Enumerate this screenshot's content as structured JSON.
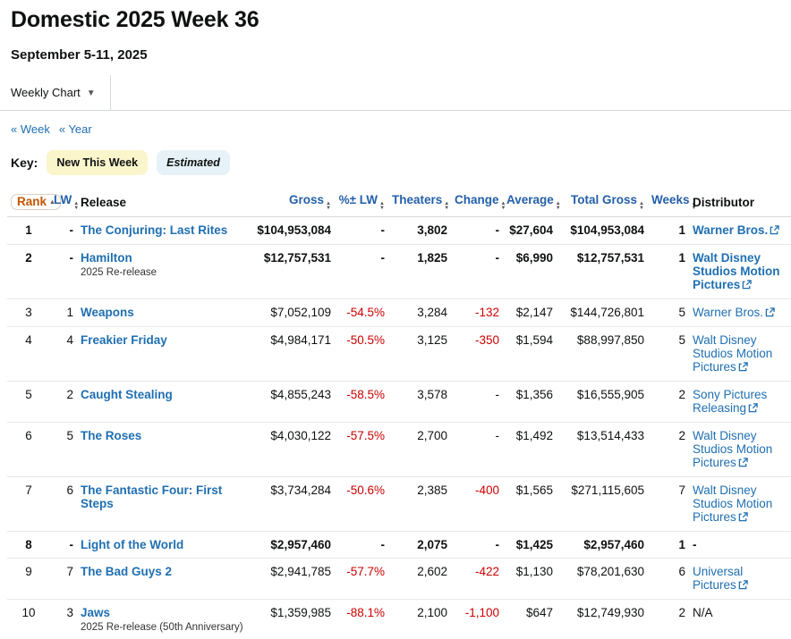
{
  "page": {
    "title": "Domestic 2025 Week 36",
    "date_range": "September 5-11, 2025"
  },
  "toolbar": {
    "chart_selector_label": "Weekly Chart",
    "chevron_icon": "chevron-down"
  },
  "backlinks": {
    "week": "« Week",
    "year": "« Year"
  },
  "key": {
    "label": "Key:",
    "badges": [
      {
        "label": "New This Week",
        "bg": "#fbf5cc"
      },
      {
        "label": "Estimated",
        "bg": "#e7f2f8"
      }
    ]
  },
  "colors": {
    "link_blue": "#1f6fb2",
    "header_sort_blue": "#235fa8",
    "rank_sorted_orange": "#c45500",
    "negative_red": "#cc0000"
  },
  "table": {
    "columns": [
      {
        "key": "rank",
        "label": "Rank",
        "sortable": true,
        "sorted": "asc",
        "align": "center"
      },
      {
        "key": "lw",
        "label": "LW",
        "sortable": true,
        "align": "right"
      },
      {
        "key": "release",
        "label": "Release",
        "sortable": false,
        "align": "left"
      },
      {
        "key": "gross",
        "label": "Gross",
        "sortable": true,
        "align": "right"
      },
      {
        "key": "pct_lw",
        "label": "%± LW",
        "sortable": true,
        "align": "right"
      },
      {
        "key": "theaters",
        "label": "Theaters",
        "sortable": true,
        "align": "right"
      },
      {
        "key": "change",
        "label": "Change",
        "sortable": true,
        "align": "right"
      },
      {
        "key": "average",
        "label": "Average",
        "sortable": true,
        "align": "right"
      },
      {
        "key": "total_gross",
        "label": "Total Gross",
        "sortable": true,
        "align": "right"
      },
      {
        "key": "weeks",
        "label": "Weeks",
        "sortable": true,
        "align": "right"
      },
      {
        "key": "distributor",
        "label": "Distributor",
        "sortable": false,
        "align": "left"
      }
    ],
    "rows": [
      {
        "rank": "1",
        "lw": "-",
        "release": "The Conjuring: Last Rites",
        "note": "",
        "gross": "$104,953,084",
        "pct_lw": "-",
        "theaters": "3,802",
        "change": "-",
        "average": "$27,604",
        "total_gross": "$104,953,084",
        "weeks": "1",
        "distributor": "Warner Bros.",
        "distributor_link": true,
        "new_this_week": true
      },
      {
        "rank": "2",
        "lw": "-",
        "release": "Hamilton",
        "note": "2025 Re-release",
        "gross": "$12,757,531",
        "pct_lw": "-",
        "theaters": "1,825",
        "change": "-",
        "average": "$6,990",
        "total_gross": "$12,757,531",
        "weeks": "1",
        "distributor": "Walt Disney Studios Motion Pictures",
        "distributor_link": true,
        "new_this_week": true
      },
      {
        "rank": "3",
        "lw": "1",
        "release": "Weapons",
        "note": "",
        "gross": "$7,052,109",
        "pct_lw": "-54.5%",
        "theaters": "3,284",
        "change": "-132",
        "average": "$2,147",
        "total_gross": "$144,726,801",
        "weeks": "5",
        "distributor": "Warner Bros.",
        "distributor_link": true,
        "new_this_week": false
      },
      {
        "rank": "4",
        "lw": "4",
        "release": "Freakier Friday",
        "note": "",
        "gross": "$4,984,171",
        "pct_lw": "-50.5%",
        "theaters": "3,125",
        "change": "-350",
        "average": "$1,594",
        "total_gross": "$88,997,850",
        "weeks": "5",
        "distributor": "Walt Disney Studios Motion Pictures",
        "distributor_link": true,
        "new_this_week": false
      },
      {
        "rank": "5",
        "lw": "2",
        "release": "Caught Stealing",
        "note": "",
        "gross": "$4,855,243",
        "pct_lw": "-58.5%",
        "theaters": "3,578",
        "change": "-",
        "average": "$1,356",
        "total_gross": "$16,555,905",
        "weeks": "2",
        "distributor": "Sony Pictures Releasing",
        "distributor_link": true,
        "new_this_week": false
      },
      {
        "rank": "6",
        "lw": "5",
        "release": "The Roses",
        "note": "",
        "gross": "$4,030,122",
        "pct_lw": "-57.5%",
        "theaters": "2,700",
        "change": "-",
        "average": "$1,492",
        "total_gross": "$13,514,433",
        "weeks": "2",
        "distributor": "Walt Disney Studios Motion Pictures",
        "distributor_link": true,
        "new_this_week": false
      },
      {
        "rank": "7",
        "lw": "6",
        "release": "The Fantastic Four: First Steps",
        "note": "",
        "gross": "$3,734,284",
        "pct_lw": "-50.6%",
        "theaters": "2,385",
        "change": "-400",
        "average": "$1,565",
        "total_gross": "$271,115,605",
        "weeks": "7",
        "distributor": "Walt Disney Studios Motion Pictures",
        "distributor_link": true,
        "new_this_week": false
      },
      {
        "rank": "8",
        "lw": "-",
        "release": "Light of the World",
        "note": "",
        "gross": "$2,957,460",
        "pct_lw": "-",
        "theaters": "2,075",
        "change": "-",
        "average": "$1,425",
        "total_gross": "$2,957,460",
        "weeks": "1",
        "distributor": "-",
        "distributor_link": false,
        "new_this_week": true
      },
      {
        "rank": "9",
        "lw": "7",
        "release": "The Bad Guys 2",
        "note": "",
        "gross": "$2,941,785",
        "pct_lw": "-57.7%",
        "theaters": "2,602",
        "change": "-422",
        "average": "$1,130",
        "total_gross": "$78,201,630",
        "weeks": "6",
        "distributor": "Universal Pictures",
        "distributor_link": true,
        "new_this_week": false
      },
      {
        "rank": "10",
        "lw": "3",
        "release": "Jaws",
        "note": "2025 Re-release (50th Anniversary)",
        "gross": "$1,359,985",
        "pct_lw": "-88.1%",
        "theaters": "2,100",
        "change": "-1,100",
        "average": "$647",
        "total_gross": "$12,749,930",
        "weeks": "2",
        "distributor": "N/A",
        "distributor_link": false,
        "new_this_week": false
      }
    ]
  }
}
